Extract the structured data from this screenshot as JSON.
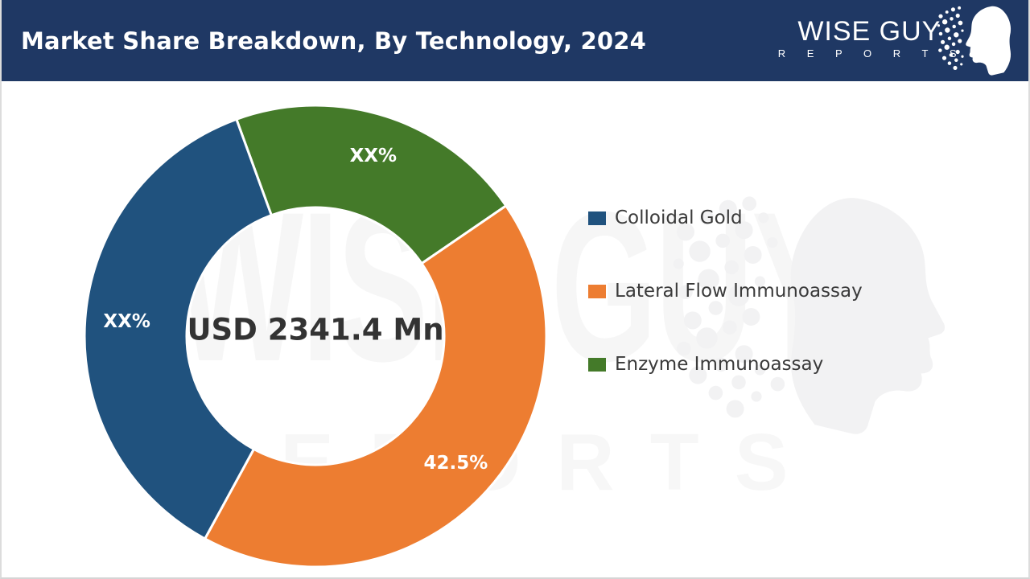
{
  "header": {
    "title": "Market Share Breakdown, By Technology, 2024",
    "bg_color": "#1f3864",
    "logo": {
      "name": "WISE GUY",
      "sub": "R E P O R T S"
    }
  },
  "chart_data": {
    "type": "pie",
    "title": "Market Share Breakdown, By Technology, 2024",
    "donut": true,
    "center_label": "USD 2341.4 Mn",
    "start_angle_deg": 110,
    "direction": "clockwise",
    "segments": [
      {
        "name": "Enzyme Immunoassay",
        "display_label": "XX%",
        "value_pct": 21.0,
        "masked": true,
        "color": "#447a29"
      },
      {
        "name": "Lateral Flow Immunoassay",
        "display_label": "42.5%",
        "value_pct": 42.5,
        "masked": false,
        "color": "#ed7d31"
      },
      {
        "name": "Colloidal Gold",
        "display_label": "XX%",
        "value_pct": 36.5,
        "masked": true,
        "color": "#20527e"
      }
    ],
    "legend_position": "right",
    "legend_items": [
      {
        "label": "Colloidal Gold",
        "color": "#20527e"
      },
      {
        "label": "Lateral Flow Immunoassay",
        "color": "#ed7d31"
      },
      {
        "label": "Enzyme Immunoassay",
        "color": "#447a29"
      }
    ]
  },
  "watermark": {
    "line1": "WISE GUY",
    "line2": "REPORTS"
  }
}
